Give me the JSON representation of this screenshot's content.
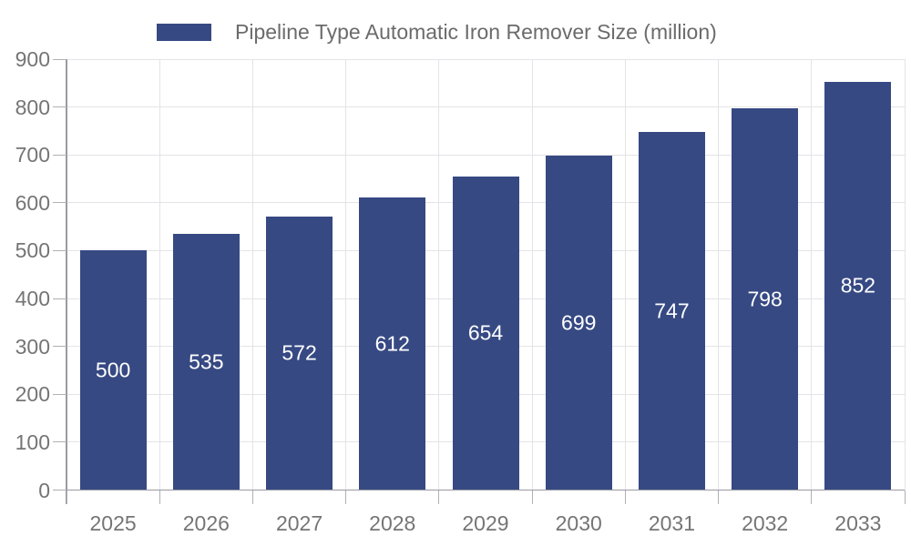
{
  "legend": {
    "label": "Pipeline Type Automatic Iron Remover Size (million)"
  },
  "chart_data": {
    "type": "bar",
    "title": "Pipeline Type Automatic Iron Remover Size (million)",
    "series_name": "Pipeline Type Automatic Iron Remover Size (million)",
    "categories": [
      "2025",
      "2026",
      "2027",
      "2028",
      "2029",
      "2030",
      "2031",
      "2032",
      "2033"
    ],
    "values": [
      500,
      535,
      572,
      612,
      654,
      699,
      747,
      798,
      852
    ],
    "value_labels": [
      "500",
      "535",
      "572",
      "612",
      "654",
      "699",
      "747",
      "798",
      "852"
    ],
    "xlabel": "",
    "ylabel": "",
    "ylim": [
      0,
      900
    ],
    "ytick_step": 100,
    "yticks": [
      0,
      100,
      200,
      300,
      400,
      500,
      600,
      700,
      800,
      900
    ],
    "grid": "on",
    "legend_position": "top",
    "bar_color": "#364983",
    "value_label_color": "#ffffff",
    "grid_color": "#e4e4e8",
    "axis_color": "#9a9aa2",
    "tick_color": "#b0b0b6",
    "axis_label_color": "#757575",
    "legend_text_color": "#6b6b6b"
  }
}
